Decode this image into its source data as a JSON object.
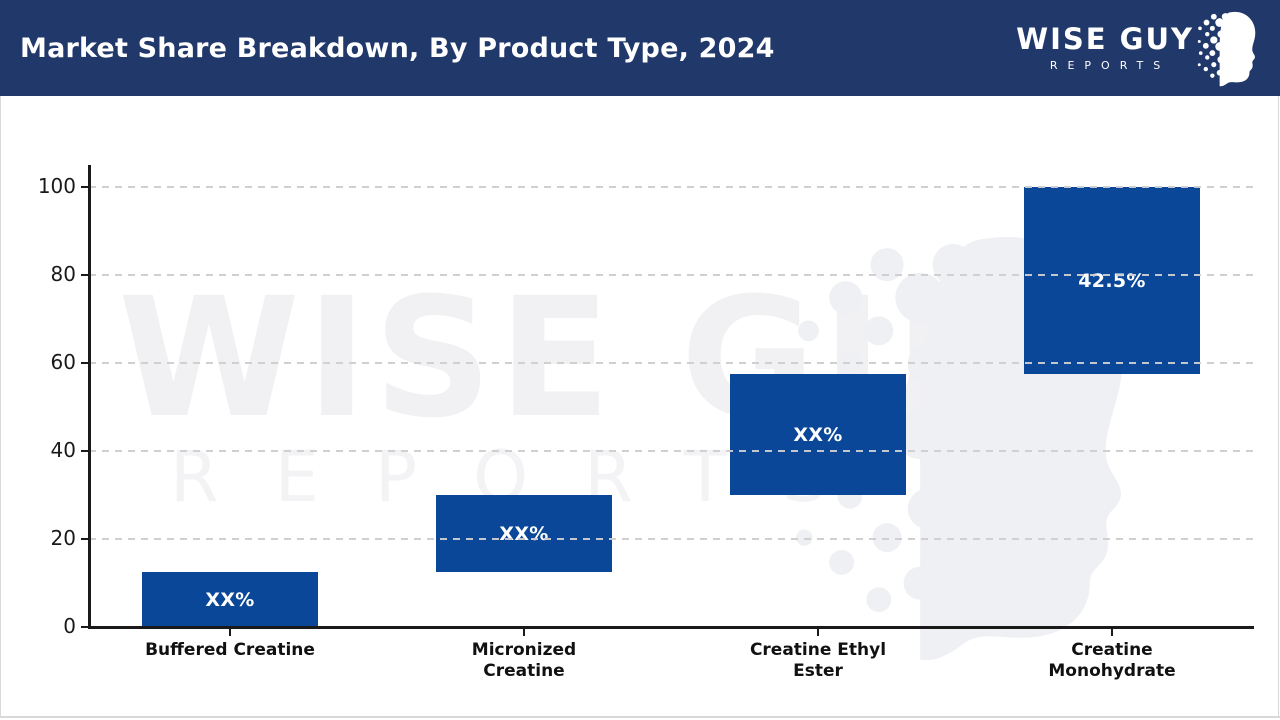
{
  "header": {
    "title": "Market Share Breakdown, By Product Type, 2024",
    "bg_color": "#20386a",
    "logo": {
      "line1": "WISE GUY",
      "line2": "REPORTS"
    }
  },
  "watermark": {
    "line1": "WISE GUY",
    "line2": "REPORTS"
  },
  "chart_data": {
    "type": "bar",
    "subtype": "floating-range-waterfall",
    "title": "Market Share Breakdown, By Product Type, 2024",
    "categories": [
      "Buffered Creatine",
      "Micronized Creatine",
      "Creatine Ethyl Ester",
      "Creatine Monohydrate"
    ],
    "bars": [
      {
        "category": "Buffered Creatine",
        "cat_lines": [
          "Buffered Creatine"
        ],
        "label": "XX%",
        "range": [
          0,
          12.5
        ]
      },
      {
        "category": "Micronized Creatine",
        "cat_lines": [
          "Micronized",
          "Creatine"
        ],
        "label": "XX%",
        "range": [
          12.5,
          30
        ]
      },
      {
        "category": "Creatine Ethyl Ester",
        "cat_lines": [
          "Creatine Ethyl",
          "Ester"
        ],
        "label": "XX%",
        "range": [
          30,
          57.5
        ]
      },
      {
        "category": "Creatine Monohydrate",
        "cat_lines": [
          "Creatine",
          "Monohydrate"
        ],
        "label": "42.5%",
        "range": [
          57.5,
          100
        ]
      }
    ],
    "yticks": [
      0,
      20,
      40,
      60,
      80,
      100
    ],
    "ylim": [
      0,
      105
    ],
    "xlabel": "",
    "ylabel": "",
    "grid": "horizontal-dashed",
    "legend": "none",
    "bar_color": "#0a4798",
    "bar_label_color": "#ffffff",
    "grid_color": "#cecece",
    "axis_color": "#1a1a1a",
    "watermark_color": "#f1f1f4"
  }
}
